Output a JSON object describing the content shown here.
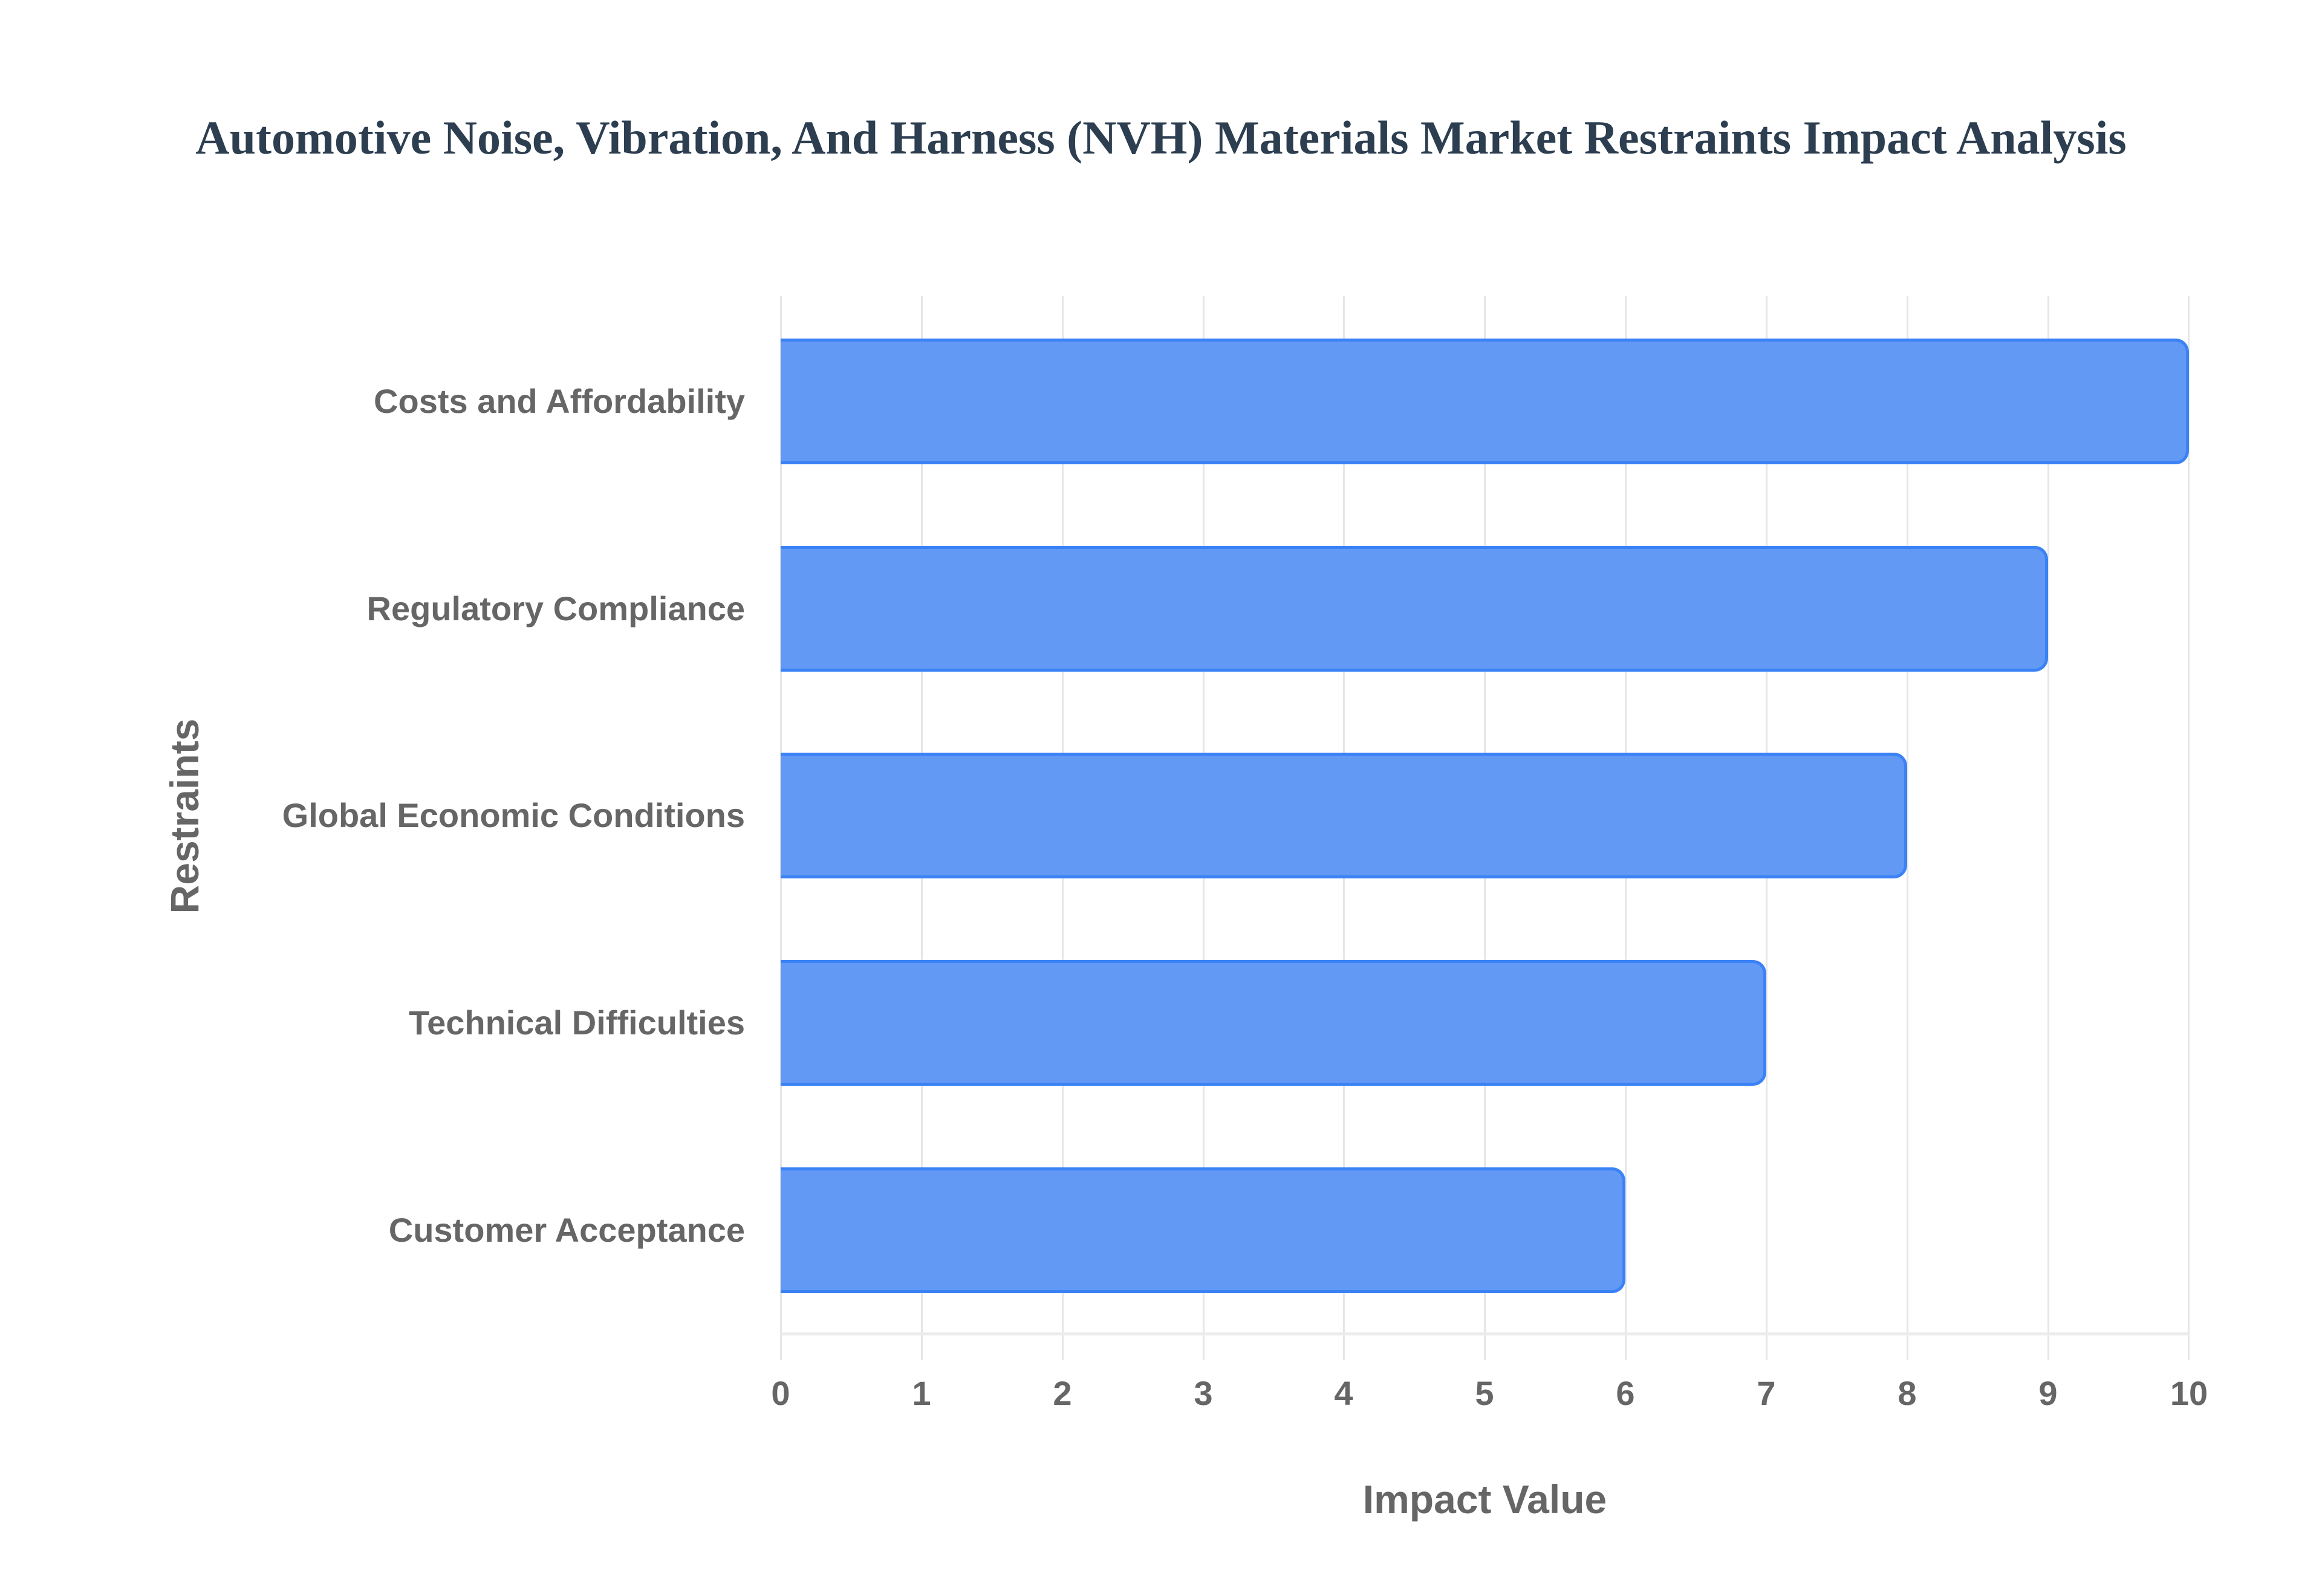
{
  "chart_data": {
    "type": "bar",
    "orientation": "horizontal",
    "title": "Automotive Noise, Vibration, And Harness (NVH) Materials Market Restraints Impact Analysis",
    "xlabel": "Impact Value",
    "ylabel": "Restraints",
    "categories": [
      "Costs and Affordability",
      "Regulatory Compliance",
      "Global Economic Conditions",
      "Technical Difficulties",
      "Customer Acceptance"
    ],
    "values": [
      10,
      9,
      8,
      7,
      6
    ],
    "xlim": [
      0,
      10
    ],
    "x_ticks": [
      "0",
      "1",
      "2",
      "3",
      "4",
      "5",
      "6",
      "7",
      "8",
      "9",
      "10"
    ],
    "grid": true,
    "legend": null,
    "colors": {
      "bar_fill": "#6199f5",
      "bar_border": "#3b82f6",
      "title": "#2c3e50",
      "axis_text": "#666666",
      "grid": "#e6e6e6"
    }
  }
}
